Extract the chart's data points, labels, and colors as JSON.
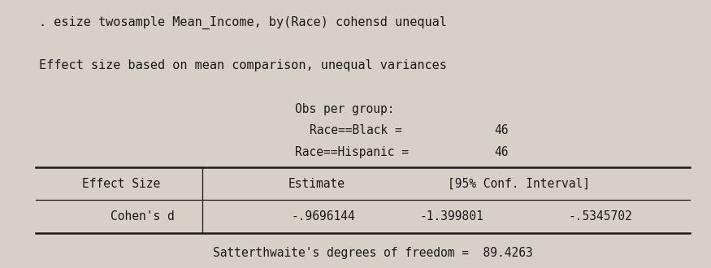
{
  "bg_color": "#d6d0c8",
  "command_line": ". esize twosample Mean_Income, by(Race) cohensd unequal",
  "subtitle": "Effect size based on mean comparison, unequal variances",
  "obs_header": "Obs per group:",
  "obs_row1_label": "Race==Black =",
  "obs_row1_value": "46",
  "obs_row2_label": "Race==Hispanic =",
  "obs_row2_value": "46",
  "table_col1_header": "Effect Size",
  "table_col2_header": "Estimate",
  "table_col3_header": "[95% Conf. Interval]",
  "table_row1_col1": "Cohen's d",
  "table_row1_col2": "-.9696144",
  "table_row1_col3a": "-1.399801",
  "table_row1_col3b": "-.5345702",
  "footer": "Satterthwaite's degrees of freedom =  89.4263",
  "font_family": "monospace",
  "text_color": "#1a1a1a"
}
